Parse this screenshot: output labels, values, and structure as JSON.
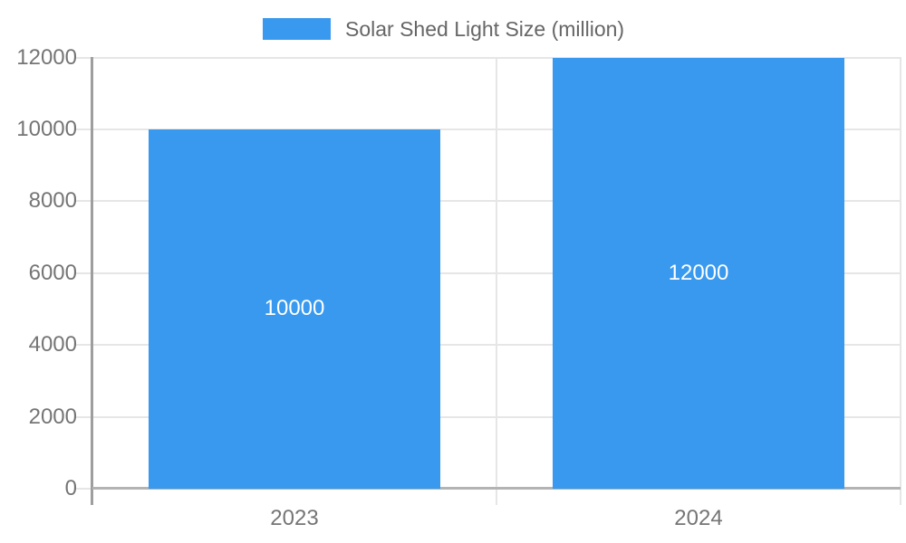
{
  "chart_data": {
    "type": "bar",
    "title": "",
    "legend": {
      "label": "Solar Shed Light Size (million)",
      "position": "top"
    },
    "categories": [
      "2023",
      "2024"
    ],
    "series": [
      {
        "name": "Solar Shed Light Size (million)",
        "values": [
          10000,
          12000
        ]
      }
    ],
    "data_labels": [
      "10000",
      "12000"
    ],
    "yticks": [
      0,
      2000,
      4000,
      6000,
      8000,
      10000,
      12000
    ],
    "ytick_labels": [
      "0",
      "2000",
      "4000",
      "6000",
      "8000",
      "10000",
      "12000"
    ],
    "ylim": [
      0,
      12000
    ],
    "grid": true,
    "layout_hints": {
      "legend_position": "top",
      "bar_orientation": "vertical",
      "value_labels_inside_bars": true
    },
    "colors": {
      "bar": "#3899EE",
      "grid": "#E6E6E6",
      "y_axis": "#9E9E9E",
      "x_axis": "#B3B3B3",
      "tick_text": "#757575",
      "legend_text": "#666666",
      "bar_label_text": "#FFFFFF",
      "background": "#FFFFFF"
    }
  }
}
